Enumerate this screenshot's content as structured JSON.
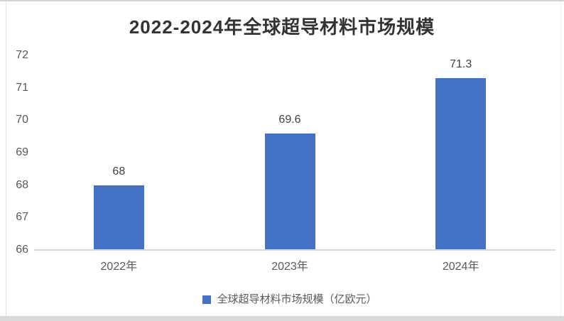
{
  "title": "2022-2024年全球超导材料市场规模",
  "legend": {
    "label": "全球超导材料市场规模（亿欧元）",
    "swatch_color": "#4472C4"
  },
  "chart_data": {
    "type": "bar",
    "title": "2022-2024年全球超导材料市场规模",
    "categories": [
      "2022年",
      "2023年",
      "2024年"
    ],
    "values": [
      68,
      69.6,
      71.3
    ],
    "data_labels": [
      "68",
      "69.6",
      "71.3"
    ],
    "series_name": "全球超导材料市场规模（亿欧元）",
    "xlabel": "",
    "ylabel": "",
    "ylim": [
      66,
      72
    ],
    "yticks": [
      66,
      67,
      68,
      69,
      70,
      71,
      72
    ],
    "grid": "off",
    "legend_position": "bottom",
    "bar_color": "#4472C4",
    "axis_line_color": "#d9d9d9"
  },
  "colors": {
    "title_text": "#333333",
    "axis_text": "#595959",
    "data_label_text": "#404040",
    "bar": "#4472C4",
    "axis_line": "#d9d9d9",
    "frame_top": "#d2d2d2",
    "frame_bottom": "#d9d9d9",
    "frame_side": "#e7e7e7"
  }
}
